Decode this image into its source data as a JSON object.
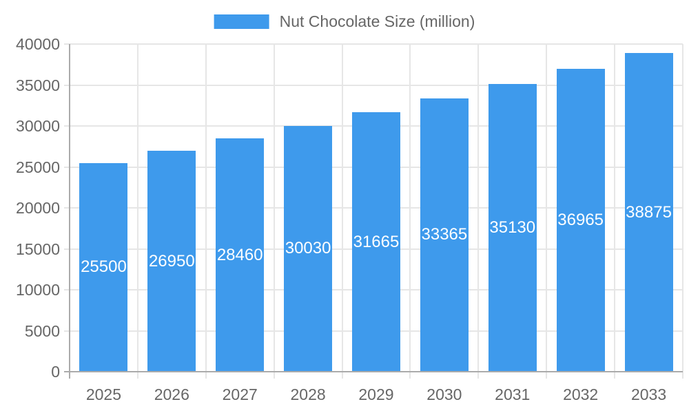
{
  "chart_data": {
    "type": "bar",
    "title": "Nut Chocolate Size (million)",
    "legend": {
      "label": "Nut Chocolate Size (million)",
      "position": "top-center"
    },
    "categories": [
      "2025",
      "2026",
      "2027",
      "2028",
      "2029",
      "2030",
      "2031",
      "2032",
      "2033"
    ],
    "series": [
      {
        "name": "Nut Chocolate Size (million)",
        "values": [
          25500,
          26950,
          28460,
          30030,
          31665,
          33365,
          35130,
          36965,
          38875
        ]
      }
    ],
    "value_labels": [
      "25500",
      "26950",
      "28460",
      "30030",
      "31665",
      "33365",
      "35130",
      "36965",
      "38875"
    ],
    "xlabel": "",
    "ylabel": "",
    "ylim": [
      0,
      40000
    ],
    "ytick_step": 5000,
    "ytick_labels": [
      "0",
      "5000",
      "10000",
      "15000",
      "20000",
      "25000",
      "30000",
      "35000",
      "40000"
    ],
    "grid": true,
    "value_label_position": "inside-center",
    "colors": {
      "bar": "#3E9AEC",
      "bar_value_text": "#FFFFFF",
      "axis_text": "#666666",
      "gridline": "#E6E6E6",
      "axis_line": "#ABABAB",
      "background": "#FFFFFF"
    }
  }
}
